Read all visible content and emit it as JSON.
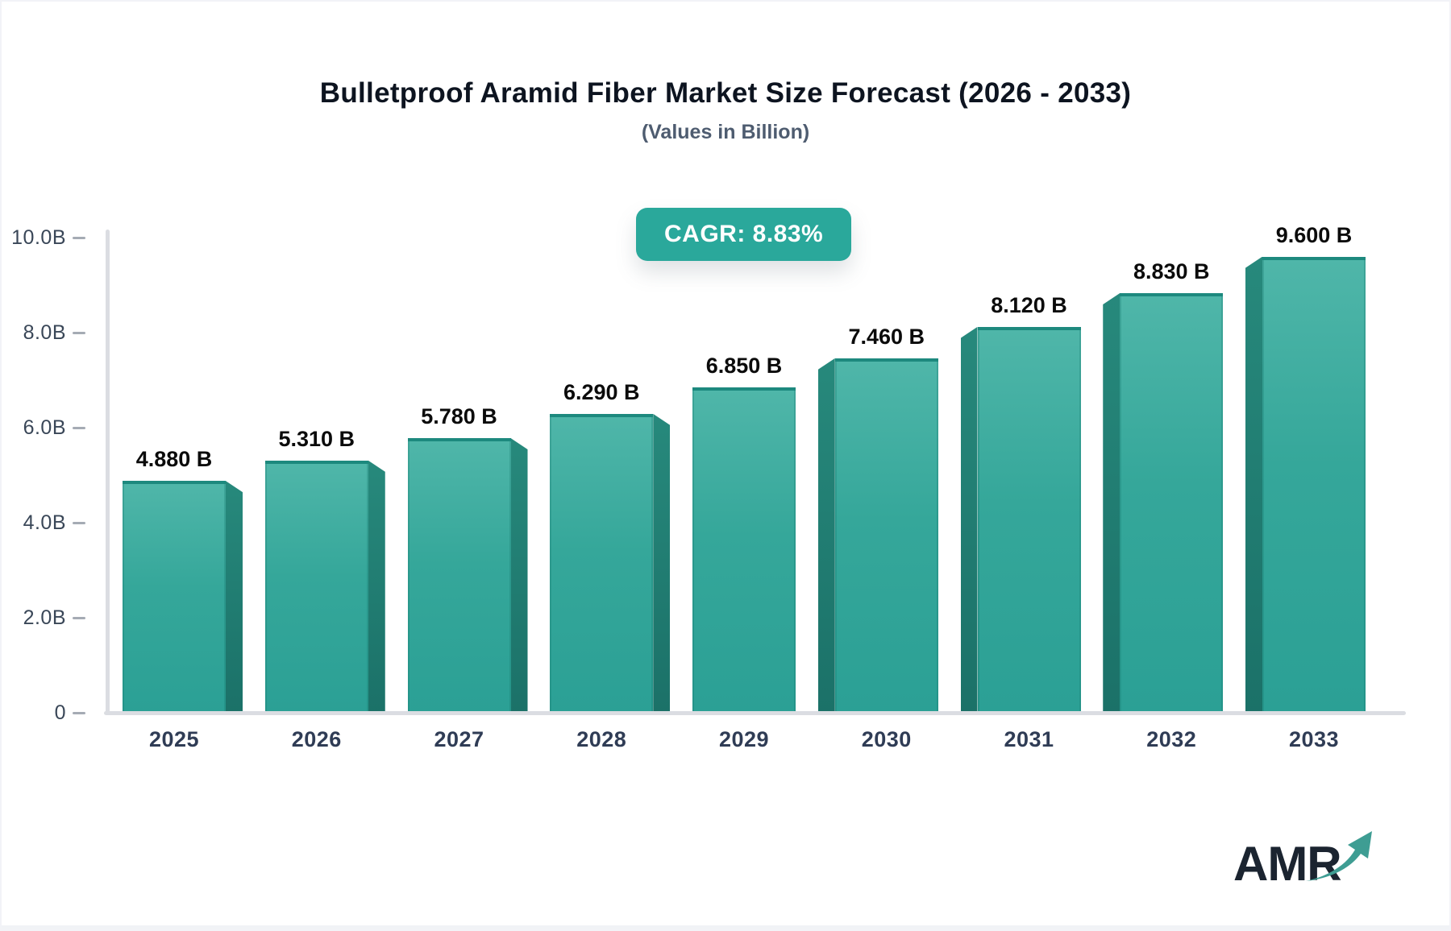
{
  "header": {
    "title": "Bulletproof Aramid Fiber Market Size Forecast (2026 - 2033)",
    "subtitle": "(Values in Billion)"
  },
  "cagr_badge": {
    "label": "CAGR: 8.83%",
    "background_color": "#2aa89b",
    "text_color": "#ffffff"
  },
  "chart_data": {
    "type": "bar",
    "title": "Bulletproof Aramid Fiber Market Size Forecast (2026 - 2033)",
    "subtitle": "(Values in Billion)",
    "categories": [
      "2025",
      "2026",
      "2027",
      "2028",
      "2029",
      "2030",
      "2031",
      "2032",
      "2033"
    ],
    "values": [
      4.88,
      5.31,
      5.78,
      6.29,
      6.85,
      7.46,
      8.12,
      8.83,
      9.6
    ],
    "bar_labels": [
      "4.880 B",
      "5.310 B",
      "5.780 B",
      "6.290 B",
      "6.850 B",
      "7.460 B",
      "8.120 B",
      "8.830 B",
      "9.600 B"
    ],
    "ytick_labels": [
      "0",
      "2.0B",
      "4.0B",
      "6.0B",
      "8.0B",
      "10.0B"
    ],
    "ytick_values": [
      0,
      2,
      4,
      6,
      8,
      10
    ],
    "ylim": [
      0,
      10
    ],
    "xlabel": "",
    "ylabel": "",
    "grid": false,
    "legend": false,
    "bar_color": "#35a79a",
    "bar_side_color": "#1e7a70",
    "axis_color": "#dbdde2"
  },
  "logo": {
    "text": "AMR",
    "arrow_icon": "growth-arrow-icon",
    "text_color": "#1b2430",
    "accent_color": "#3e9d93"
  }
}
